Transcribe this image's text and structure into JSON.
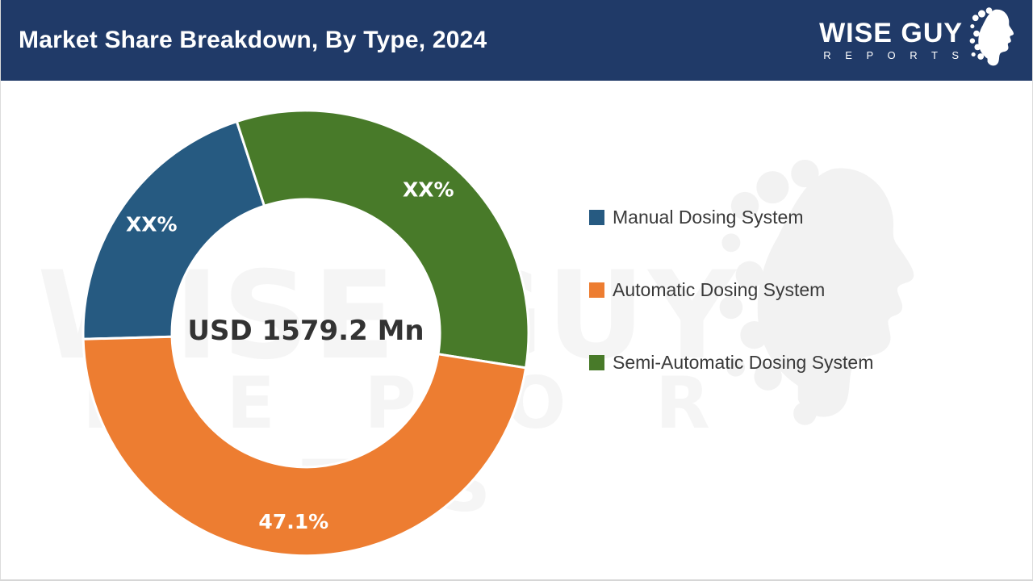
{
  "header": {
    "title": "Market Share Breakdown, By Type, 2024",
    "bg_color": "#203A68",
    "logo": {
      "name": "Wise Guy Reports",
      "line1": "WISE GUY",
      "line2": "R E P O R T S"
    }
  },
  "chart_data": {
    "type": "pie",
    "subtype": "donut",
    "title": "Market Share Breakdown, By Type, 2024",
    "center_text": "USD 1579.2 Mn",
    "total_value": 1579.2,
    "units": "USD Mn",
    "rotation_deg": 178.5,
    "direction": "clockwise",
    "legend_position": "right",
    "segments": [
      {
        "name": "Manual Dosing System",
        "color": "#265A81",
        "value_pct": 20.4,
        "display_label": "XX%"
      },
      {
        "name": "Semi-Automatic Dosing System",
        "color": "#487A29",
        "value_pct": 32.5,
        "display_label": "XX%"
      },
      {
        "name": "Automatic Dosing System",
        "color": "#ED7D31",
        "value_pct": 47.1,
        "display_label": "47.1%"
      }
    ]
  },
  "legend": {
    "items": [
      {
        "label": "Manual Dosing System",
        "color": "#265A81"
      },
      {
        "label": "Automatic Dosing System",
        "color": "#ED7D31"
      },
      {
        "label": "Semi-Automatic Dosing System",
        "color": "#487A29"
      }
    ]
  },
  "watermark": {
    "line1": "WISE GUY",
    "line2": "R E P O R T S"
  }
}
